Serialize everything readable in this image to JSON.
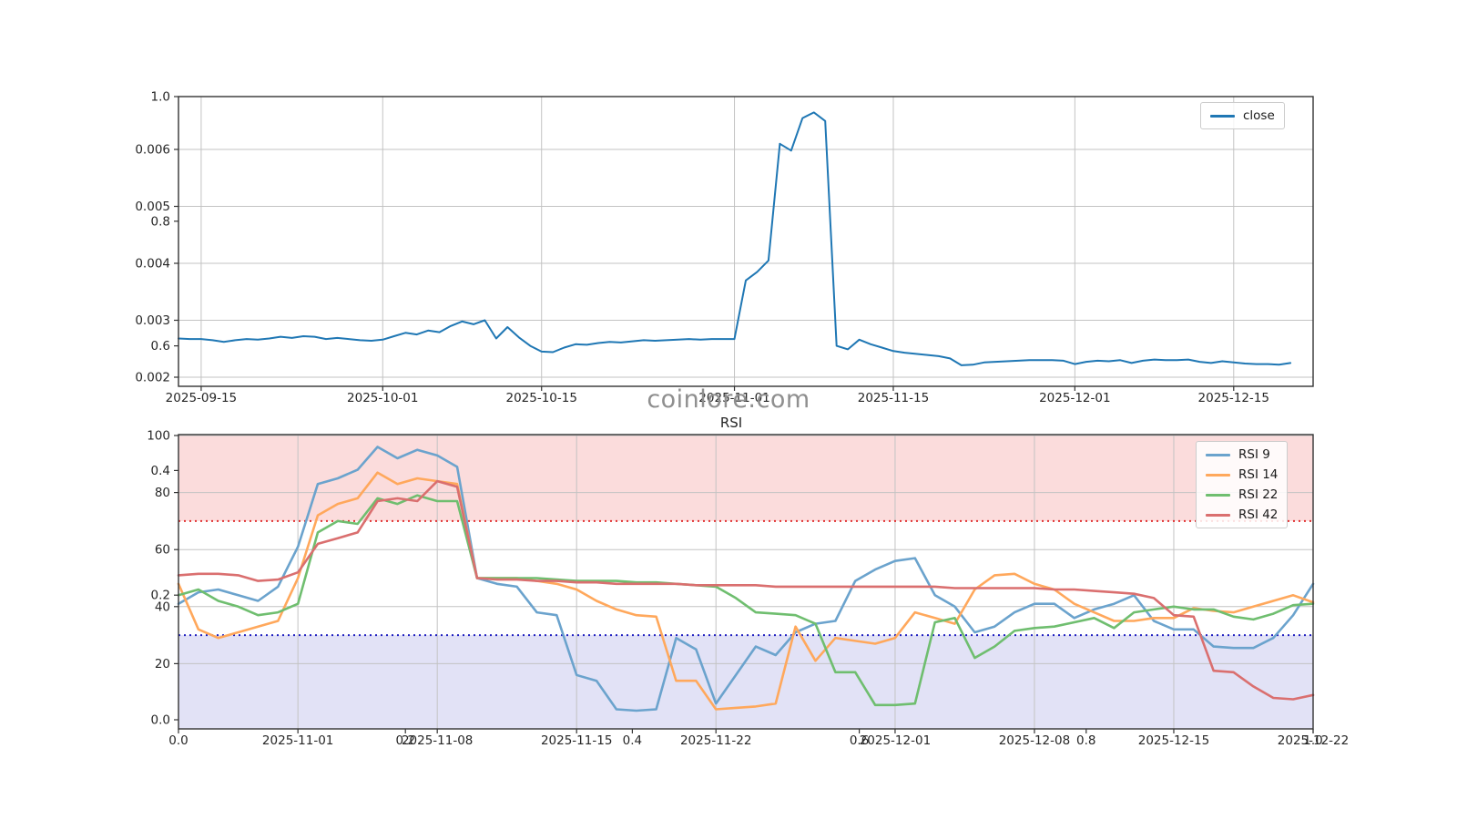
{
  "watermark": {
    "text": "coinlore.com"
  },
  "colors": {
    "close": "#1f77b4",
    "rsi9": "#6ba3cd",
    "rsi14": "#ffa85c",
    "rsi22": "#6fbe6f",
    "rsi42": "#da6f6f",
    "overbought_band": "#fbdcdc",
    "oversold_band": "#e2e2f6",
    "overbought_line": "#e03030",
    "oversold_line": "#2020c0",
    "grid": "#c3c3c3",
    "spine": "#333333",
    "tick_text": "#262626",
    "watermark_text": "#8f8f8f"
  },
  "overlay_axis": {
    "x_ticks": [
      "0.0",
      "0.2",
      "0.4",
      "0.6",
      "0.8",
      "1.0"
    ],
    "y_ticks": [
      "0.0",
      "0.2",
      "0.4",
      "0.6",
      "0.8",
      "1.0"
    ]
  },
  "chart_data": [
    {
      "type": "line",
      "title": "",
      "legend_label": "close",
      "legend_position": "upper right",
      "grid": true,
      "x_start_date": "2025-09-13",
      "x_interval": "daily",
      "x_domain_days": 100,
      "x_tick_labels": [
        "2025-09-15",
        "2025-10-01",
        "2025-10-15",
        "2025-11-01",
        "2025-11-15",
        "2025-12-01",
        "2025-12-15"
      ],
      "x_tick_day_index": [
        2,
        18,
        32,
        49,
        63,
        79,
        93
      ],
      "y_tick_labels": [
        "0.002",
        "0.003",
        "0.004",
        "0.005",
        "0.006"
      ],
      "y_tick_values": [
        0.002,
        0.003,
        0.004,
        0.005,
        0.006
      ],
      "ylim": [
        0.00184,
        0.00693
      ],
      "series": [
        {
          "name": "close",
          "color": "close",
          "values": [
            0.00268,
            0.00267,
            0.00267,
            0.00265,
            0.00262,
            0.00265,
            0.00267,
            0.00266,
            0.00268,
            0.00271,
            0.00269,
            0.00272,
            0.00271,
            0.00267,
            0.00269,
            0.00267,
            0.00265,
            0.00264,
            0.00266,
            0.00272,
            0.00278,
            0.00275,
            0.00282,
            0.00279,
            0.0029,
            0.00298,
            0.00293,
            0.003,
            0.00268,
            0.00288,
            0.0027,
            0.00255,
            0.00245,
            0.00244,
            0.00252,
            0.00258,
            0.00257,
            0.0026,
            0.00262,
            0.00261,
            0.00263,
            0.00265,
            0.00264,
            0.00265,
            0.00266,
            0.00267,
            0.00266,
            0.00267,
            0.00267,
            0.00267,
            0.0037,
            0.00385,
            0.00405,
            0.0061,
            0.00598,
            0.00655,
            0.00665,
            0.0065,
            0.00255,
            0.00249,
            0.00266,
            0.00258,
            0.00252,
            0.00246,
            0.00243,
            0.00241,
            0.00239,
            0.00237,
            0.00233,
            0.00221,
            0.00222,
            0.00226,
            0.00227,
            0.00228,
            0.00229,
            0.0023,
            0.0023,
            0.0023,
            0.00229,
            0.00223,
            0.00227,
            0.00229,
            0.00228,
            0.0023,
            0.00225,
            0.00229,
            0.00231,
            0.0023,
            0.0023,
            0.00231,
            0.00227,
            0.00225,
            0.00228,
            0.00226,
            0.00224,
            0.00223,
            0.00223,
            0.00222,
            0.00225
          ]
        }
      ]
    },
    {
      "type": "line",
      "title": "RSI",
      "legend_position": "upper right",
      "grid": true,
      "x_start_date": "2025-10-26",
      "x_interval": "daily",
      "x_domain_days": 57,
      "x_tick_labels": [
        "2025-11-01",
        "2025-11-08",
        "2025-11-15",
        "2025-11-22",
        "2025-12-01",
        "2025-12-08",
        "2025-12-15",
        "2025-12-22"
      ],
      "x_tick_day_index": [
        6,
        13,
        20,
        27,
        36,
        43,
        50,
        57
      ],
      "y_tick_labels": [
        "20",
        "40",
        "60",
        "80",
        "100"
      ],
      "y_tick_values": [
        20,
        40,
        60,
        80,
        100
      ],
      "ylim": [
        -3,
        103
      ],
      "thresholds": [
        {
          "name": "overbought",
          "value": 70,
          "color": "overbought_line",
          "style": "dotted"
        },
        {
          "name": "oversold",
          "value": 30,
          "color": "oversold_line",
          "style": "dotted"
        }
      ],
      "bands": [
        {
          "name": "overbought-zone",
          "from": 70,
          "to": 103,
          "color": "overbought_band"
        },
        {
          "name": "oversold-zone",
          "from": -3,
          "to": 30,
          "color": "oversold_band"
        }
      ],
      "series": [
        {
          "name": "RSI 9",
          "color": "rsi9",
          "values": [
            41,
            45,
            46,
            44,
            42,
            47,
            61,
            83,
            85,
            88,
            96,
            92,
            95,
            93,
            89,
            50,
            48,
            47,
            38,
            37,
            16,
            14,
            4,
            3.5,
            4,
            29,
            25,
            6,
            16,
            26,
            23,
            31,
            34,
            35,
            49,
            53,
            56,
            57,
            44,
            40,
            31,
            33,
            38,
            41,
            41,
            36,
            39,
            41,
            44,
            35,
            32,
            32,
            26,
            25.5,
            25.5,
            29,
            37,
            48
          ]
        },
        {
          "name": "RSI 14",
          "color": "rsi14",
          "values": [
            48,
            32,
            29,
            31,
            33,
            35,
            50,
            72,
            76,
            78,
            87,
            83,
            85,
            84,
            83,
            50,
            50,
            50,
            49,
            48,
            46,
            42,
            39,
            37,
            36.5,
            14,
            14,
            4,
            4.5,
            5,
            6,
            33,
            21,
            29,
            28,
            27,
            29,
            38,
            36,
            34,
            46,
            51,
            51.5,
            48,
            46,
            41,
            38,
            35,
            35,
            36,
            36,
            39.5,
            38.5,
            38,
            40,
            42,
            44,
            41.5
          ]
        },
        {
          "name": "RSI 22",
          "color": "rsi22",
          "values": [
            44,
            46,
            42,
            40,
            37,
            38,
            41,
            66,
            70,
            69,
            78,
            76,
            79,
            77,
            77,
            50,
            50,
            50,
            50,
            49.5,
            49,
            49,
            49,
            48.5,
            48.5,
            48,
            47.5,
            47,
            43,
            38,
            37.5,
            37,
            34,
            17,
            17,
            5.5,
            5.5,
            6,
            34.5,
            36,
            22,
            26,
            31.5,
            32.5,
            33,
            34.5,
            36,
            32.5,
            38,
            39,
            40,
            39,
            39,
            36.5,
            35.5,
            37.5,
            40.5,
            41
          ]
        },
        {
          "name": "RSI 42",
          "color": "rsi42",
          "values": [
            51,
            51.5,
            51.5,
            51,
            49,
            49.5,
            52,
            62,
            64,
            66,
            77,
            78,
            77,
            84,
            82,
            50,
            49.5,
            49.5,
            49,
            49,
            48.5,
            48.5,
            48,
            48,
            48,
            48,
            47.5,
            47.5,
            47.5,
            47.5,
            47,
            47,
            47,
            47,
            47,
            47,
            47,
            47,
            47,
            46.5,
            46.5,
            46.5,
            46.5,
            46.5,
            46,
            46,
            45.5,
            45,
            44.5,
            43,
            37,
            36.5,
            17.5,
            17,
            12,
            8,
            7.5,
            9
          ]
        }
      ]
    }
  ]
}
